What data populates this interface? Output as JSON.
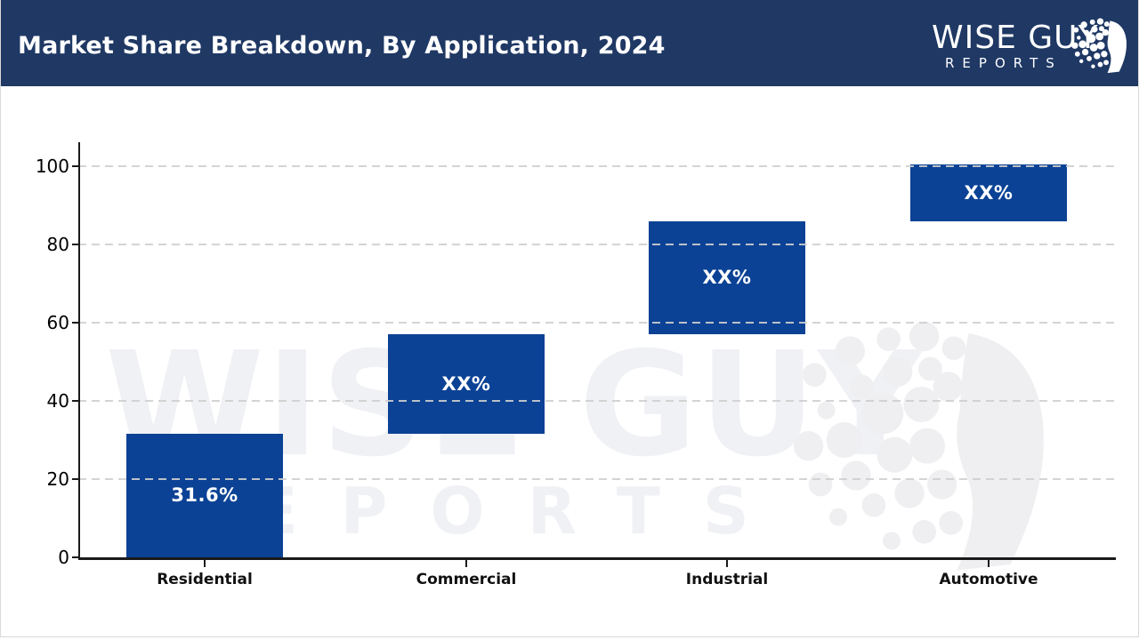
{
  "header": {
    "title": "Market Share Breakdown, By Application, 2024",
    "logo": {
      "name": "WISE GUY",
      "tagline": "REPORTS"
    }
  },
  "watermark": {
    "name": "WISE GUY",
    "tagline": "REPORTS"
  },
  "chart_data": {
    "type": "bar",
    "subtype": "waterfall",
    "title": "Market Share Breakdown, By Application, 2024",
    "categories": [
      "Residential",
      "Commercial",
      "Industrial",
      "Automotive"
    ],
    "series": [
      {
        "category": "Residential",
        "start": 0,
        "end": 31.6,
        "size_pct": 31.6,
        "label": "31.6%"
      },
      {
        "category": "Commercial",
        "start": 31.6,
        "end": 57.0,
        "size_pct": 25.4,
        "label": "XX%"
      },
      {
        "category": "Industrial",
        "start": 57.0,
        "end": 86.0,
        "size_pct": 29.0,
        "label": "XX%"
      },
      {
        "category": "Automotive",
        "start": 86.0,
        "end": 100.4,
        "size_pct": 14.4,
        "label": "XX%"
      }
    ],
    "xlabel": "",
    "ylabel": "",
    "ylim": [
      0,
      105
    ],
    "yticks": [
      0,
      20,
      40,
      60,
      80,
      100
    ],
    "legend": "none",
    "grid": "horizontal-dashed",
    "bar_color_hex": "#0b4295",
    "bar_label_color_hex": "#ffffff",
    "header_color_hex": "#1f3864"
  }
}
